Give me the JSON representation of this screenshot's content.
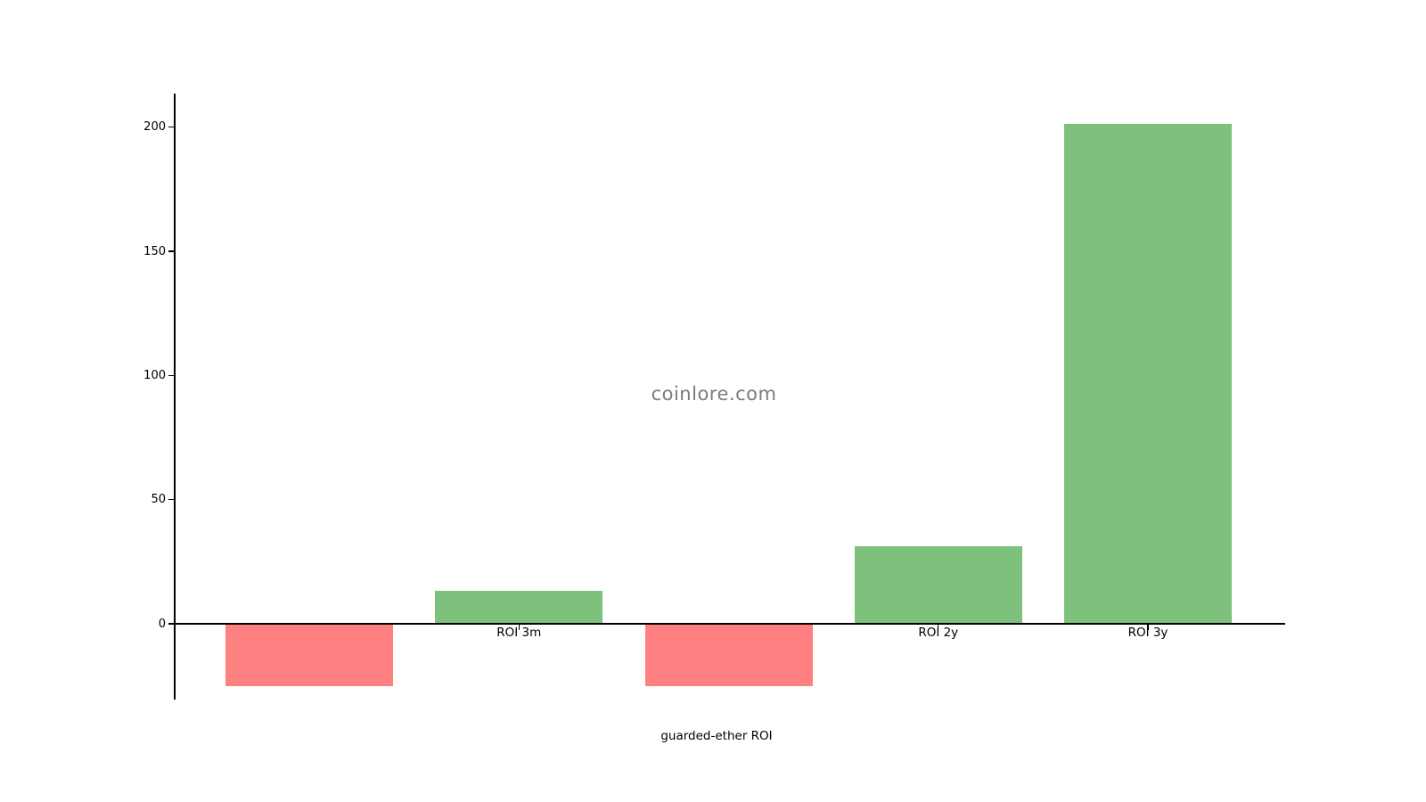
{
  "watermark": "coinlore.com",
  "colors": {
    "positive_bar": "#7dc17d",
    "negative_bar": "#ff8080",
    "axis": "#000000",
    "watermark_text": "#7b7b7b",
    "background": "#ffffff"
  },
  "chart_data": {
    "type": "bar",
    "title": "guarded-ether ROI",
    "categories": [
      "",
      "ROI 3m",
      "",
      "ROI 2y",
      "ROI 3y"
    ],
    "values": [
      -25.3,
      13.3,
      -25.0,
      31.2,
      201.4
    ],
    "bar_signs": [
      "negative",
      "positive",
      "negative",
      "positive",
      "positive"
    ],
    "xlabel": "",
    "ylabel": "",
    "yticks": [
      0,
      50,
      100,
      150,
      200
    ],
    "ylim": [
      -30.5,
      213.5
    ],
    "grid": false,
    "legend": "none",
    "watermark": "coinlore.com",
    "note": "x tick labels of the two negative bars are hidden behind the bars in the source image"
  }
}
